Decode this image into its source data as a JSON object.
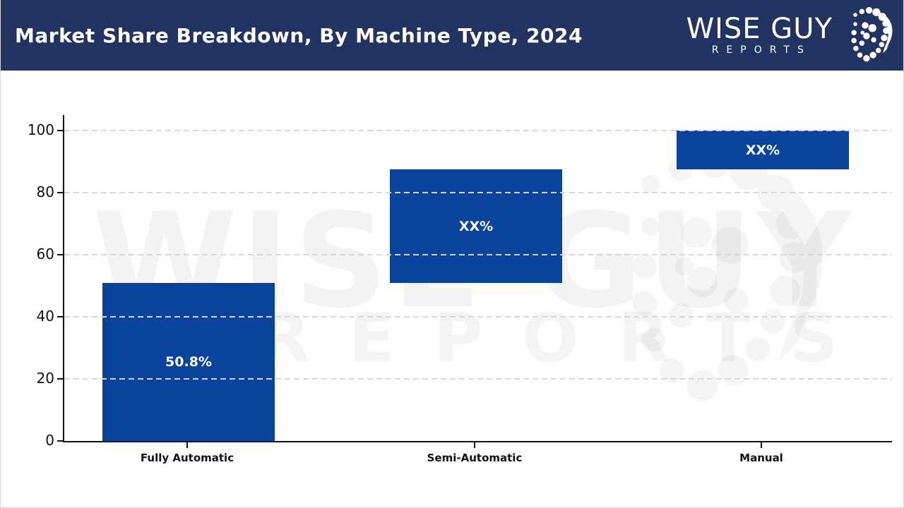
{
  "header": {
    "title": "Market Share Breakdown, By Machine Type, 2024",
    "bg_color": "#213461",
    "logo": {
      "line1": "WISE GUY",
      "line2": "REPORTS"
    }
  },
  "watermark": {
    "line1": "WISE GUY",
    "line2": "REPORTS"
  },
  "chart_data": {
    "type": "bar",
    "subtype": "waterfall",
    "title": "Market Share Breakdown, By Machine Type, 2024",
    "categories": [
      "Fully Automatic",
      "Semi-Automatic",
      "Manual"
    ],
    "segments": [
      {
        "category": "Fully Automatic",
        "start": 0,
        "end": 50.8,
        "label": "50.8%"
      },
      {
        "category": "Semi-Automatic",
        "start": 50.8,
        "end": 87.5,
        "label": "XX%"
      },
      {
        "category": "Manual",
        "start": 87.5,
        "end": 100,
        "label": "XX%"
      }
    ],
    "xlabel": "",
    "ylabel": "",
    "ylim": [
      0,
      100
    ],
    "yticks": [
      0,
      20,
      40,
      60,
      80,
      100
    ],
    "grid": "horizontal-dashed",
    "legend": "none",
    "bar_color": "#08449b",
    "bar_label_color": "#ffffff",
    "axis_color": "#111111"
  }
}
